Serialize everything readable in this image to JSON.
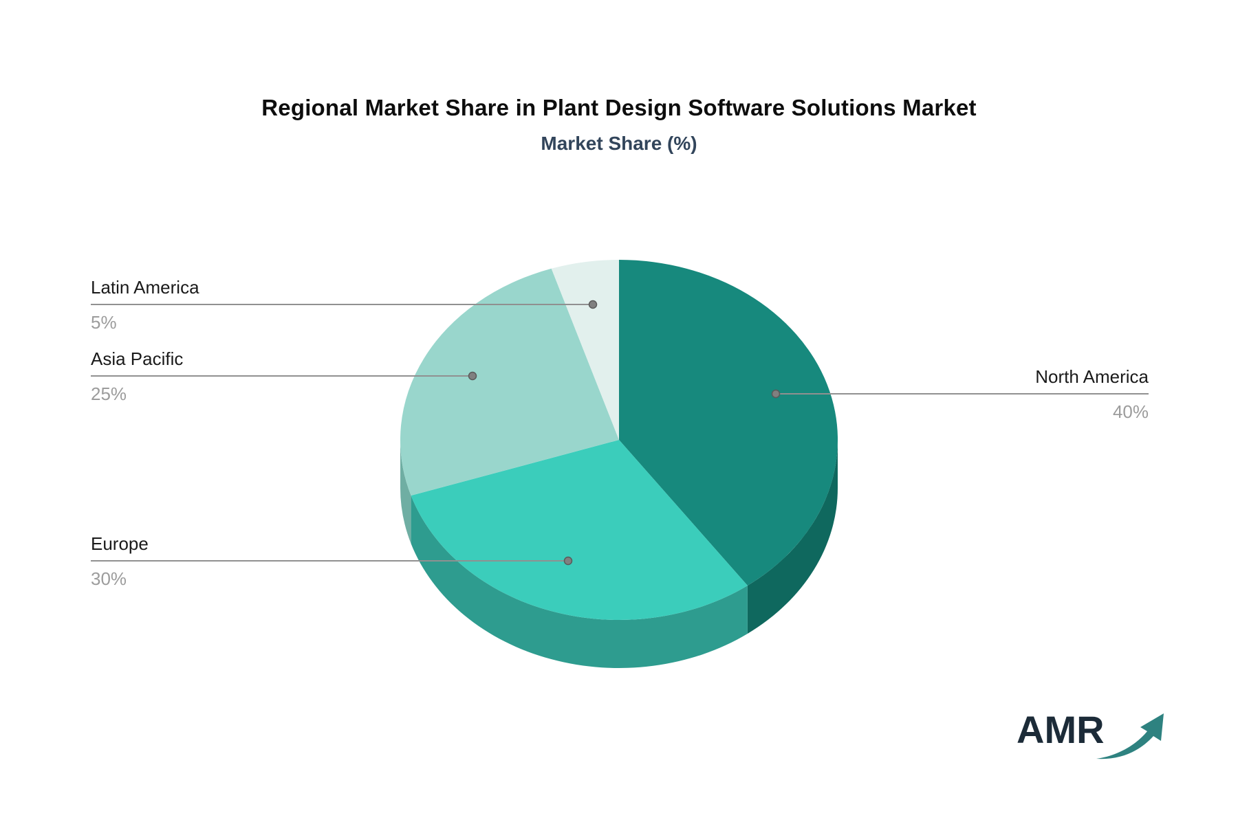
{
  "title": "Regional Market Share in Plant Design Software Solutions Market",
  "subtitle": "Market Share (%)",
  "chart_data": {
    "type": "pie",
    "title": "Regional Market Share in Plant Design Software Solutions Market",
    "subtitle": "Market Share (%)",
    "unit": "percent",
    "style": "3d",
    "start_angle_deg": 0,
    "direction": "clockwise",
    "legend": "none",
    "slices": [
      {
        "label": "North America",
        "value": 40,
        "pct_label": "40%",
        "color": "#17897D",
        "side_color": "#0F685E",
        "callout_side": "right"
      },
      {
        "label": "Europe",
        "value": 30,
        "pct_label": "30%",
        "color": "#3BCDBB",
        "side_color": "#2E9C8F",
        "callout_side": "left"
      },
      {
        "label": "Asia Pacific",
        "value": 25,
        "pct_label": "25%",
        "color": "#99D6CC",
        "side_color": "#6FAEA3",
        "callout_side": "left"
      },
      {
        "label": "Latin America",
        "value": 5,
        "pct_label": "5%",
        "color": "#E2F0ED",
        "side_color": "#C3DCD5",
        "callout_side": "left"
      }
    ]
  },
  "colors": {
    "background": "#FFFFFF",
    "title_text": "#0D0D0D",
    "subtitle_text": "#32455B",
    "label_text": "#1A1A1A",
    "pct_text": "#9C9C9C",
    "leader_line": "#909090",
    "leader_dot": "#808080",
    "leader_dot_ring": "#5A5A5A",
    "logo_text": "#1C2B38",
    "logo_arrow": "#2E8280"
  },
  "logo": {
    "text": "AMR"
  }
}
